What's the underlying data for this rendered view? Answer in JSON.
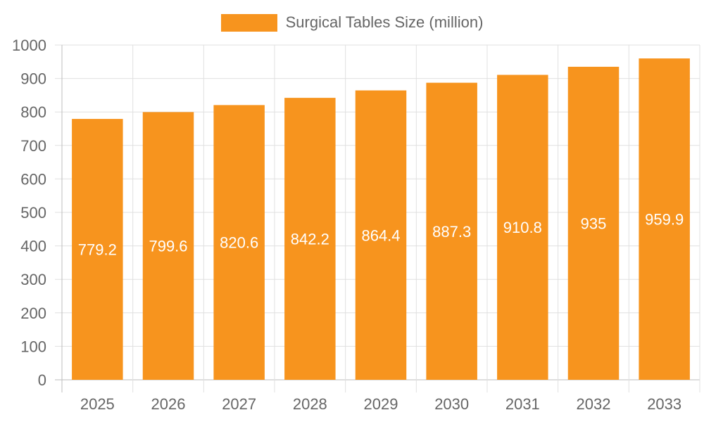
{
  "chart_data": {
    "type": "bar",
    "categories": [
      "2025",
      "2026",
      "2027",
      "2028",
      "2029",
      "2030",
      "2031",
      "2032",
      "2033"
    ],
    "series": [
      {
        "name": "Surgical Tables Size (million)",
        "values": [
          779.2,
          799.6,
          820.6,
          842.2,
          864.4,
          887.3,
          910.8,
          935,
          959.9
        ],
        "data_labels": [
          "779.2",
          "799.6",
          "820.6",
          "842.2",
          "864.4",
          "887.3",
          "910.8",
          "935",
          "959.9"
        ]
      }
    ],
    "ylim": [
      0,
      1000
    ],
    "yticks": [
      "0",
      "100",
      "200",
      "300",
      "400",
      "500",
      "600",
      "700",
      "800",
      "900",
      "1000"
    ],
    "grid": true,
    "legend_position": "top-center",
    "colors": {
      "bar": "#f7941e",
      "grid": "#e0e0e0",
      "axis": "#bdbdbd",
      "text": "#666666",
      "data_label": "#ffffff"
    }
  }
}
